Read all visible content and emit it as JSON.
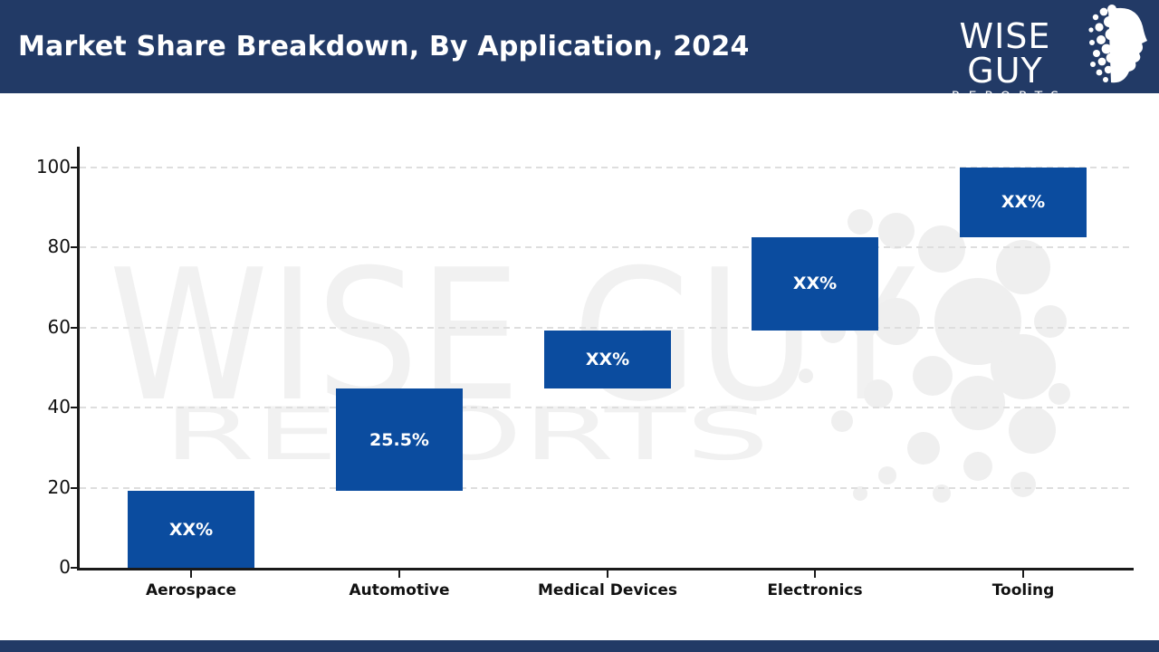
{
  "header": {
    "title": "Market Share Breakdown, By Application, 2024",
    "logo": {
      "line1": "WISE GUY",
      "line2": "REPORTS"
    }
  },
  "watermark": {
    "line1": "WISE GUY",
    "line2": "REPORTS"
  },
  "colors": {
    "header_bg": "#223A66",
    "footer_bg": "#223A66",
    "bar_blue": "#0B4C9F",
    "grid_gray": "#DEDEDE",
    "axis_black": "#1A1A1A",
    "watermark_gray": "#F1F1F1",
    "label_white": "#FFFFFF",
    "text_black": "#111111"
  },
  "chart_data": {
    "type": "bar",
    "subtype": "waterfall",
    "title": "Market Share Breakdown, By Application, 2024",
    "categories": [
      "Aerospace",
      "Automotive",
      "Medical Devices",
      "Electronics",
      "Tooling"
    ],
    "segments": [
      {
        "category": "Aerospace",
        "start": 0,
        "end": 19.2,
        "height": 19.2,
        "label": "XX%"
      },
      {
        "category": "Automotive",
        "start": 19.2,
        "end": 44.7,
        "height": 25.5,
        "label": "25.5%"
      },
      {
        "category": "Medical Devices",
        "start": 44.7,
        "end": 59.3,
        "height": 14.6,
        "label": "XX%"
      },
      {
        "category": "Electronics",
        "start": 59.3,
        "end": 82.6,
        "height": 23.3,
        "label": "XX%"
      },
      {
        "category": "Tooling",
        "start": 82.6,
        "end": 100,
        "height": 17.4,
        "label": "XX%"
      }
    ],
    "xlabel": "",
    "ylabel": "",
    "ylim": [
      0,
      100
    ],
    "yticks": [
      0,
      20,
      40,
      60,
      80,
      100
    ],
    "grid": "horizontal-dashed",
    "legend": "none"
  }
}
